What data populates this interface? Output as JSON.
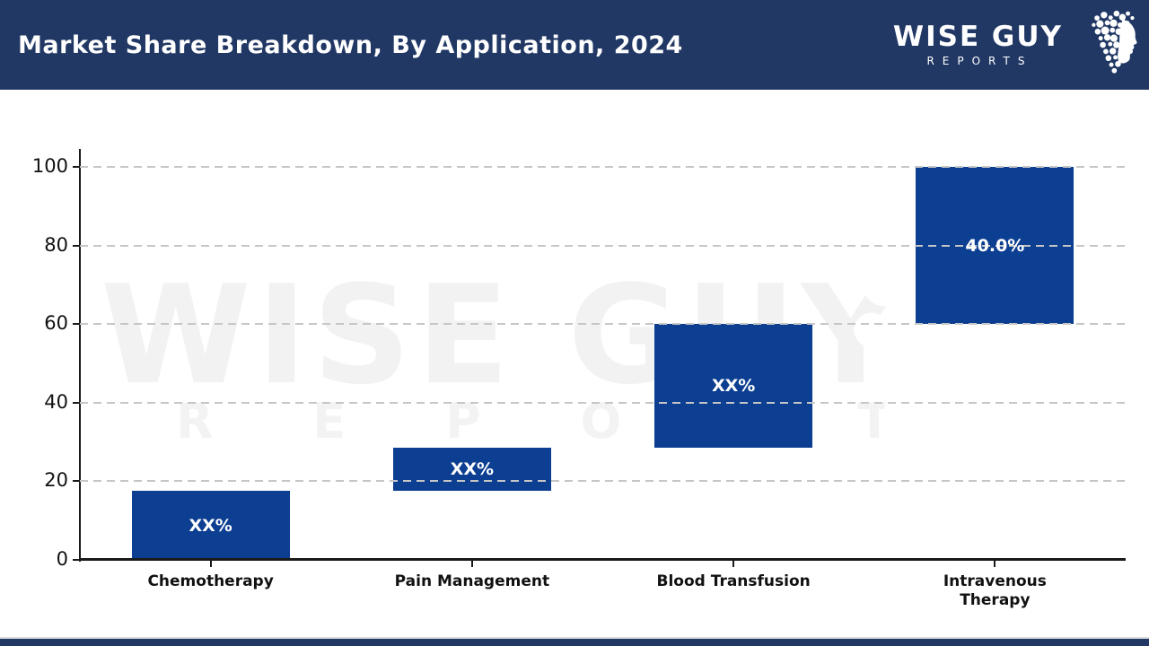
{
  "header": {
    "title": "Market Share Breakdown, By Application, 2024",
    "bg_color": "#213865",
    "logo": {
      "line1": "WISE GUY",
      "line2": "REPORTS"
    }
  },
  "watermark": {
    "line1": "WISE GUY",
    "line2": "R E P O R T S"
  },
  "chart_data": {
    "type": "bar",
    "subtype": "waterfall-floating-bars",
    "title": "Market Share Breakdown, By Application, 2024",
    "categories": [
      "Chemotherapy",
      "Pain Management",
      "Blood Transfusion",
      "Intravenous Therapy"
    ],
    "series": [
      {
        "name": "Market Share",
        "segments": [
          {
            "category": "Chemotherapy",
            "start": 0,
            "end": 17.5,
            "label": "XX%"
          },
          {
            "category": "Pain Management",
            "start": 17.5,
            "end": 28.5,
            "label": "XX%"
          },
          {
            "category": "Blood Transfusion",
            "start": 28.5,
            "end": 60,
            "label": "XX%"
          },
          {
            "category": "Intravenous Therapy",
            "start": 60,
            "end": 100,
            "label": "40.0%"
          }
        ]
      }
    ],
    "xlabel": "",
    "ylabel": "",
    "ylim": [
      0,
      104
    ],
    "yticks": [
      0,
      20,
      40,
      60,
      80,
      100
    ],
    "grid": "horizontal-dashed-over-bars",
    "legend": "none",
    "bar_color": "#0c3e91",
    "bar_label_color": "#ffffff"
  }
}
